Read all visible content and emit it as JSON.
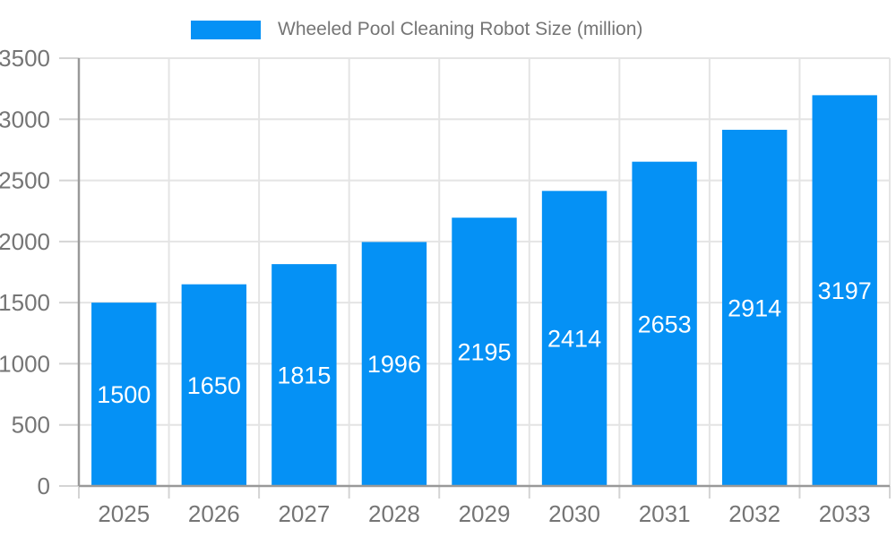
{
  "chart_data": {
    "type": "bar",
    "title": "Wheeled Pool Cleaning Robot Size (million)",
    "legend": {
      "position": "top",
      "entries": [
        "Wheeled Pool Cleaning Robot Size (million)"
      ]
    },
    "categories": [
      "2025",
      "2026",
      "2027",
      "2028",
      "2029",
      "2030",
      "2031",
      "2032",
      "2033"
    ],
    "values": [
      1500,
      1650,
      1815,
      1996,
      2195,
      2414,
      2653,
      2914,
      3197
    ],
    "xlabel": "",
    "ylabel": "",
    "ylim": [
      0,
      3500
    ],
    "y_ticks": [
      0,
      500,
      1000,
      1500,
      2000,
      2500,
      3000,
      3500
    ],
    "grid": "both",
    "colors": {
      "bar": "#0591F5",
      "bar_value_label": "#ffffff",
      "axis_text": "#757575",
      "legend_text": "#757575",
      "gridline": "#e4e4e4",
      "tick": "#d4d4d4",
      "axis_line": "#999999",
      "background": "#ffffff"
    }
  }
}
